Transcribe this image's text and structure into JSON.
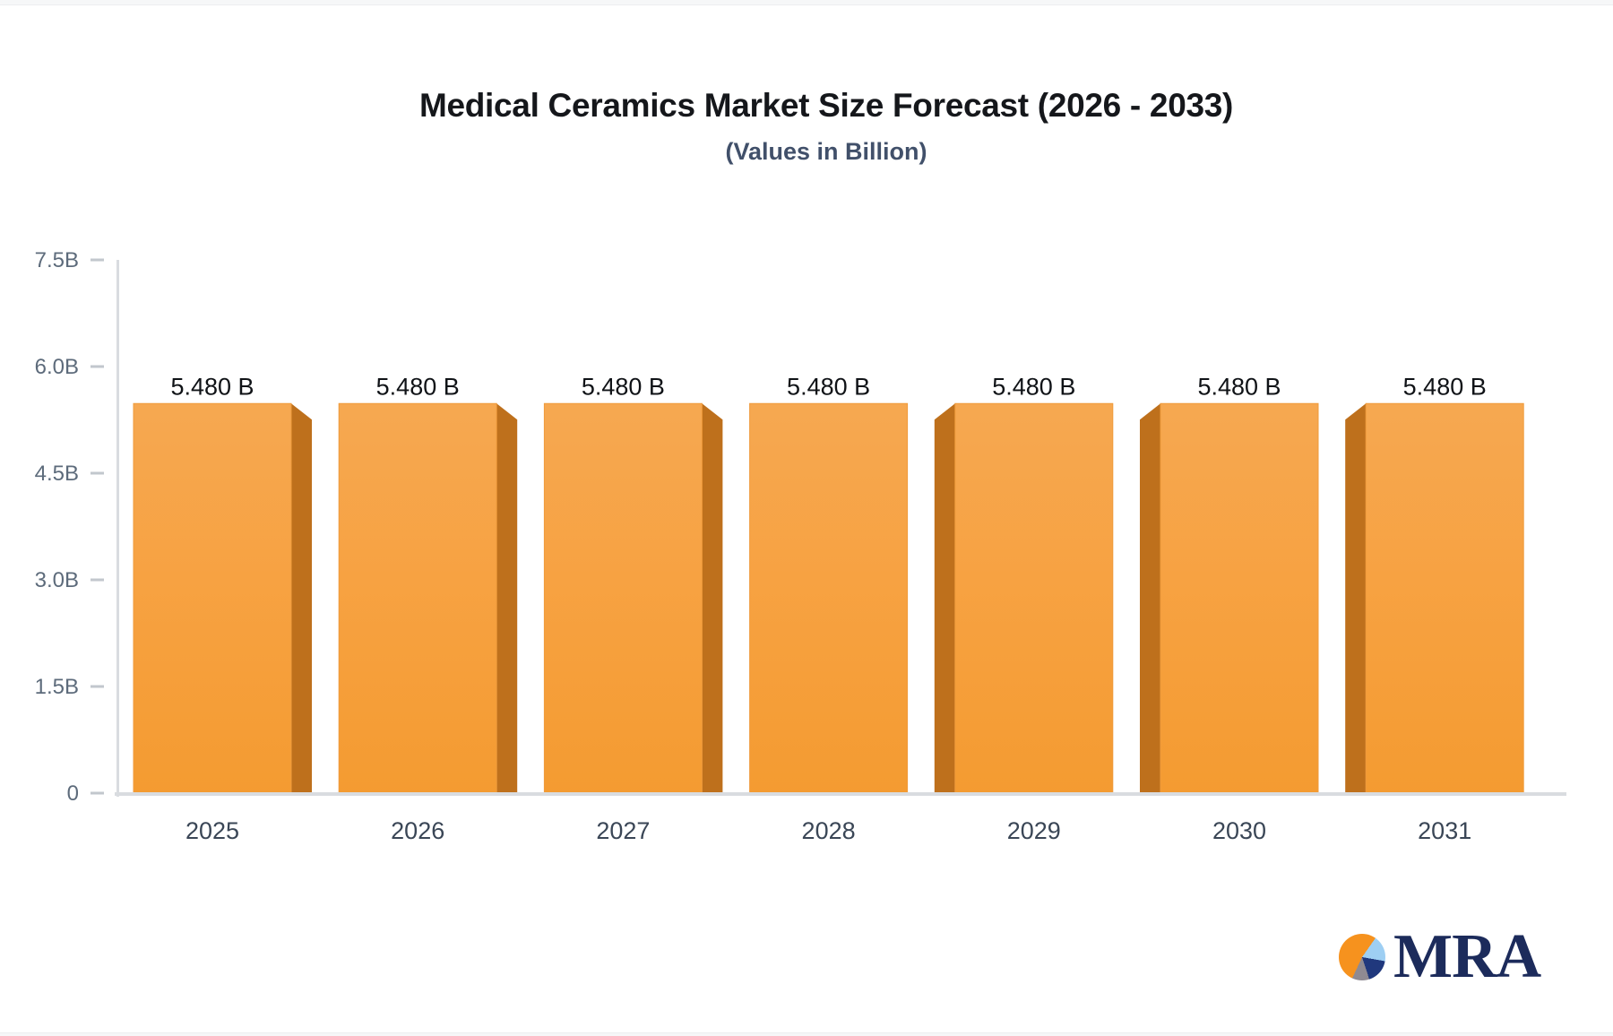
{
  "header": {
    "title": "Medical Ceramics Market Size Forecast (2026 - 2033)",
    "subtitle": "(Values in Billion)"
  },
  "chart_data": {
    "type": "bar",
    "title": "Medical Ceramics Market Size Forecast (2026 - 2033)",
    "subtitle": "(Values in Billion)",
    "categories": [
      "2025",
      "2026",
      "2027",
      "2028",
      "2029",
      "2030",
      "2031"
    ],
    "values": [
      5.48,
      5.48,
      5.48,
      5.48,
      5.48,
      5.48,
      5.48
    ],
    "bar_labels": [
      "5.480 B",
      "5.480 B",
      "5.480 B",
      "5.480 B",
      "5.480 B",
      "5.480 B",
      "5.480 B"
    ],
    "xlabel": "",
    "ylabel": "",
    "ylim": [
      0,
      7.5
    ],
    "yticks": {
      "values": [
        0,
        1.5,
        3.0,
        4.5,
        6.0,
        7.5
      ],
      "labels": [
        "0",
        "1.5B",
        "3.0B",
        "4.5B",
        "6.0B",
        "7.5B"
      ]
    },
    "grid": false,
    "legend": false,
    "style": "3d-bars, perspective toward center, value labels above bars",
    "colors": {
      "bar_top": "#F6A851",
      "bar_mid": "#F7A242",
      "bar_bottom": "#F49B31",
      "bar_stroke": "#EF9B3C",
      "bar_side": "#BE701C",
      "axis": "#D9DCE0",
      "tick_mark": "#C2C7CD",
      "tick_label": "#5D6B7B",
      "x_label": "#3A4656",
      "value_label": "#101317"
    }
  },
  "logo": {
    "text": "MRA",
    "text_color": "#1C2B5B",
    "pie_colors": {
      "orange": "#F6921E",
      "light_blue": "#9ECFF3",
      "dark_blue": "#20387D",
      "gray": "#8F8A92"
    }
  }
}
